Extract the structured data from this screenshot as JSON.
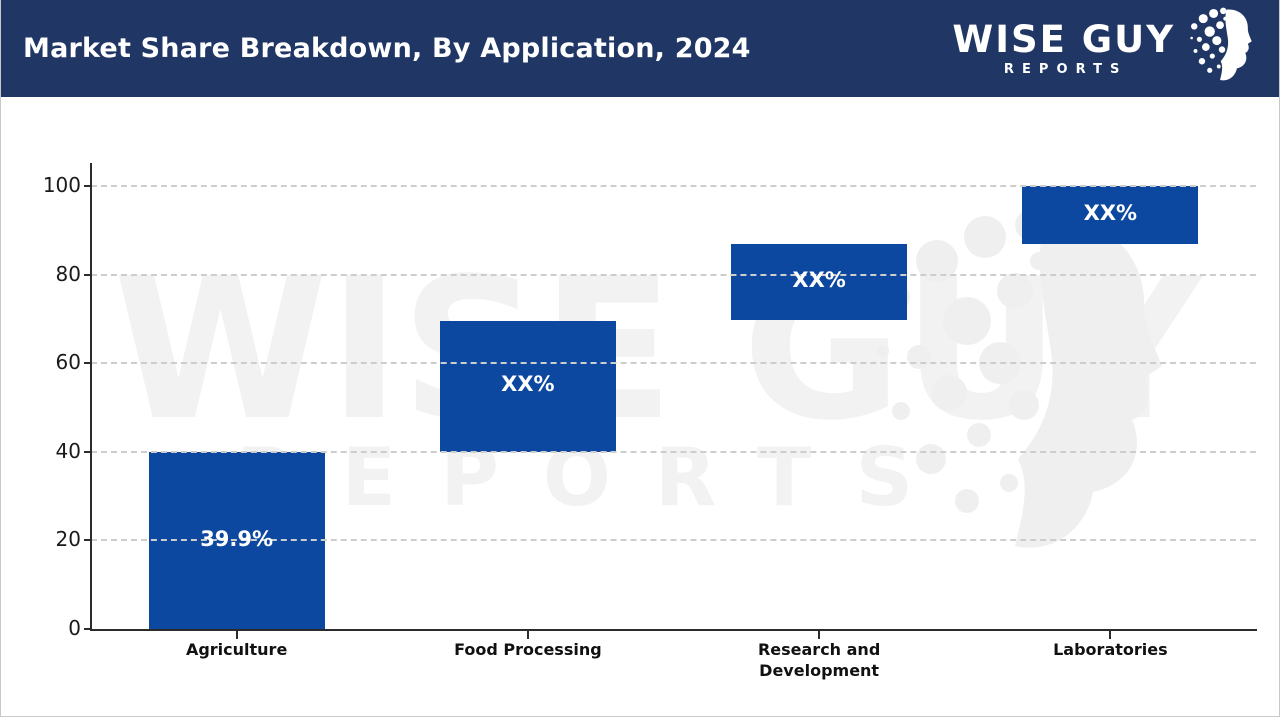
{
  "header": {
    "title": "Market Share Breakdown, By Application, 2024",
    "logo": {
      "line1": "WISE GUY",
      "line2": "REPORTS"
    }
  },
  "watermark": {
    "line1": "WISE GUY",
    "line2": "REPORTS"
  },
  "chart_data": {
    "type": "bar",
    "subtype": "waterfall",
    "title": "Market Share Breakdown, By Application, 2024",
    "xlabel": "",
    "ylabel": "",
    "categories": [
      "Agriculture",
      "Food Processing",
      "Research and Development",
      "Laboratories"
    ],
    "segments": [
      {
        "category": "Agriculture",
        "start": 0,
        "end": 39.9,
        "label": "39.9%"
      },
      {
        "category": "Food Processing",
        "start": 39.9,
        "end": 69.6,
        "label": "XX%"
      },
      {
        "category": "Research and Development",
        "start": 69.8,
        "end": 86.8,
        "label": "XX%"
      },
      {
        "category": "Laboratories",
        "start": 86.8,
        "end": 100,
        "label": "XX%"
      }
    ],
    "ylim": [
      0,
      105
    ],
    "yticks": [
      0,
      20,
      40,
      60,
      80,
      100
    ],
    "grid": true,
    "grid_style": "dashed",
    "legend_position": "none",
    "bar_color": "#0C47A0",
    "bar_label_color": "#ffffff"
  },
  "colors": {
    "header_bg": "#203664",
    "bar": "#0C47A0",
    "axis": "#2b2b2b",
    "grid": "#cdcdcd",
    "watermark": "#f2f2f2",
    "page_bg": "#ffffff",
    "border": "#c9c9c9"
  }
}
